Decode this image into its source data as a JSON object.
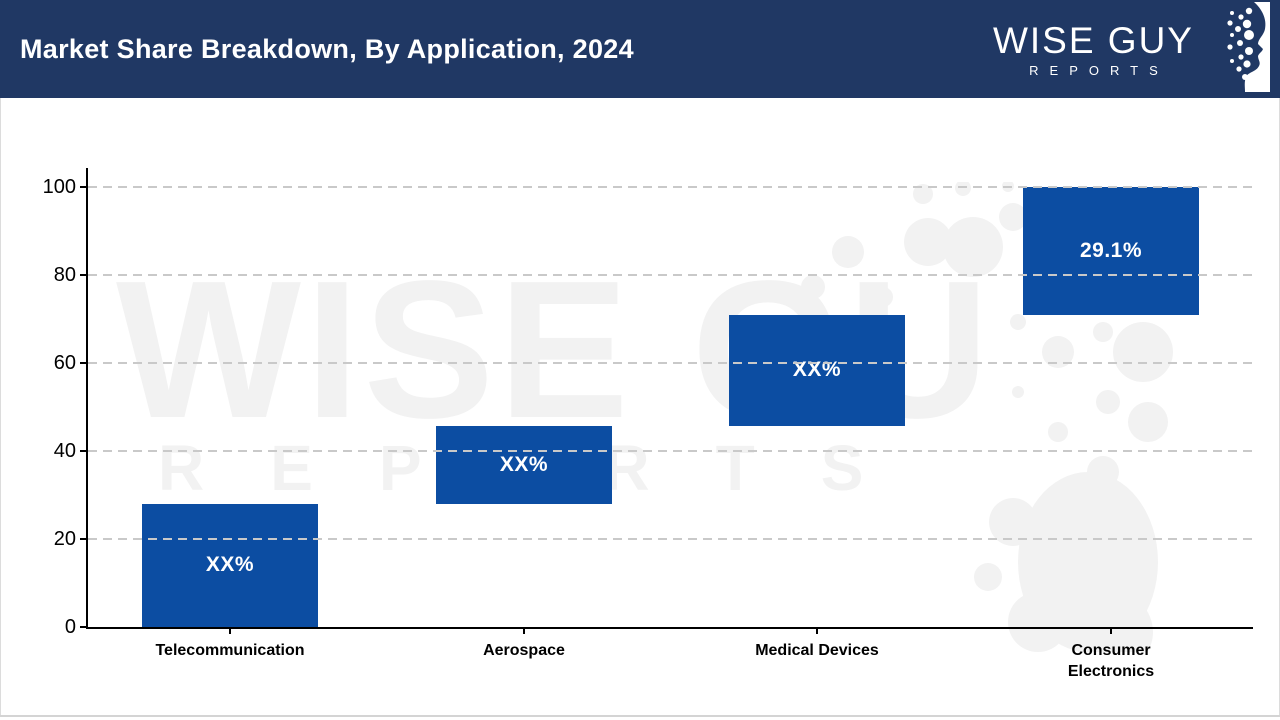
{
  "header": {
    "title": "Market Share Breakdown, By Application, 2024",
    "logo": {
      "line1": "WISE GUY",
      "line2": "REPORTS"
    }
  },
  "watermark": {
    "line1": "WISE GU",
    "line2": "REPORTS"
  },
  "chart_data": {
    "type": "bar",
    "subtype": "floating-waterfall",
    "title": "Market Share Breakdown, By Application, 2024",
    "categories": [
      "Telecommunication",
      "Aerospace",
      "Medical Devices",
      "Consumer Electronics"
    ],
    "series": [
      {
        "name": "Market share (%)",
        "bars": [
          {
            "category": "Telecommunication",
            "label": "XX%",
            "start": 0,
            "end": 28.0
          },
          {
            "category": "Aerospace",
            "label": "XX%",
            "start": 28.0,
            "end": 45.7
          },
          {
            "category": "Medical Devices",
            "label": "XX%",
            "start": 45.7,
            "end": 70.9
          },
          {
            "category": "Consumer Electronics",
            "label": "29.1%",
            "start": 70.9,
            "end": 100
          }
        ]
      }
    ],
    "ylim": [
      0,
      100
    ],
    "yticks": [
      0,
      20,
      40,
      60,
      80,
      100
    ],
    "xlabel": "",
    "ylabel": "",
    "grid": "horizontal-dashed",
    "legend": "none"
  },
  "colors": {
    "header_bg": "#203864",
    "bar": "#0c4da2",
    "bar_label": "#ffffff",
    "watermark": "#f2f2f2",
    "grid": "#c9c9c9",
    "axis": "#000000"
  }
}
